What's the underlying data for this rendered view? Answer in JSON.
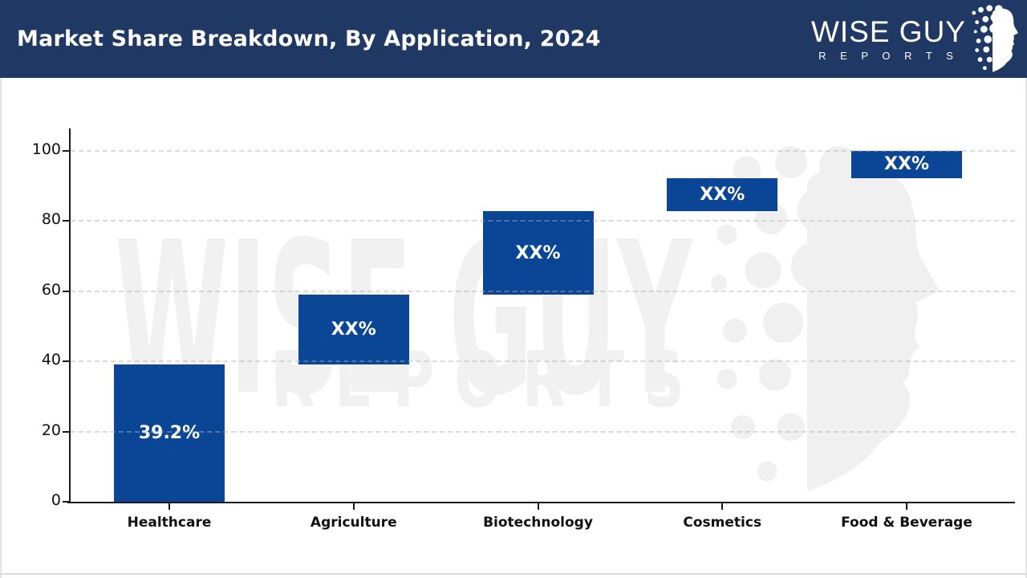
{
  "header": {
    "bg_color": "#203864",
    "title": "Market Share Breakdown, By Application, 2024",
    "logo": {
      "line1": "WISE GUY",
      "line2": "R E P O R T S"
    }
  },
  "watermark": {
    "line1": "WISE GUY",
    "line2": "R E P O R T S"
  },
  "chart_data": {
    "type": "bar",
    "subtype": "waterfall-share-breakdown",
    "title": "Market Share Breakdown, By Application, 2024",
    "unit": "%",
    "categories": [
      "Healthcare",
      "Agriculture",
      "Biotechnology",
      "Cosmetics",
      "Food & Beverage"
    ],
    "segments": [
      {
        "category": "Healthcare",
        "start": 0,
        "end": 39.2,
        "value_label": "39.2%"
      },
      {
        "category": "Agriculture",
        "start": 39.2,
        "end": 59.0,
        "value_label": "XX%"
      },
      {
        "category": "Biotechnology",
        "start": 59.0,
        "end": 82.7,
        "value_label": "XX%"
      },
      {
        "category": "Cosmetics",
        "start": 82.7,
        "end": 92.2,
        "value_label": "XX%"
      },
      {
        "category": "Food & Beverage",
        "start": 92.2,
        "end": 100,
        "value_label": "XX%"
      }
    ],
    "y_ticks": [
      0,
      20,
      40,
      60,
      80,
      100
    ],
    "ylim": [
      0,
      106
    ],
    "xlabel": "",
    "ylabel": "",
    "grid": "horizontal-dashed-above-bars",
    "legend": "none",
    "bar_color": "#0b4596",
    "bar_label_color": "#ffffff",
    "watermark_color": "#f0f0f0"
  }
}
